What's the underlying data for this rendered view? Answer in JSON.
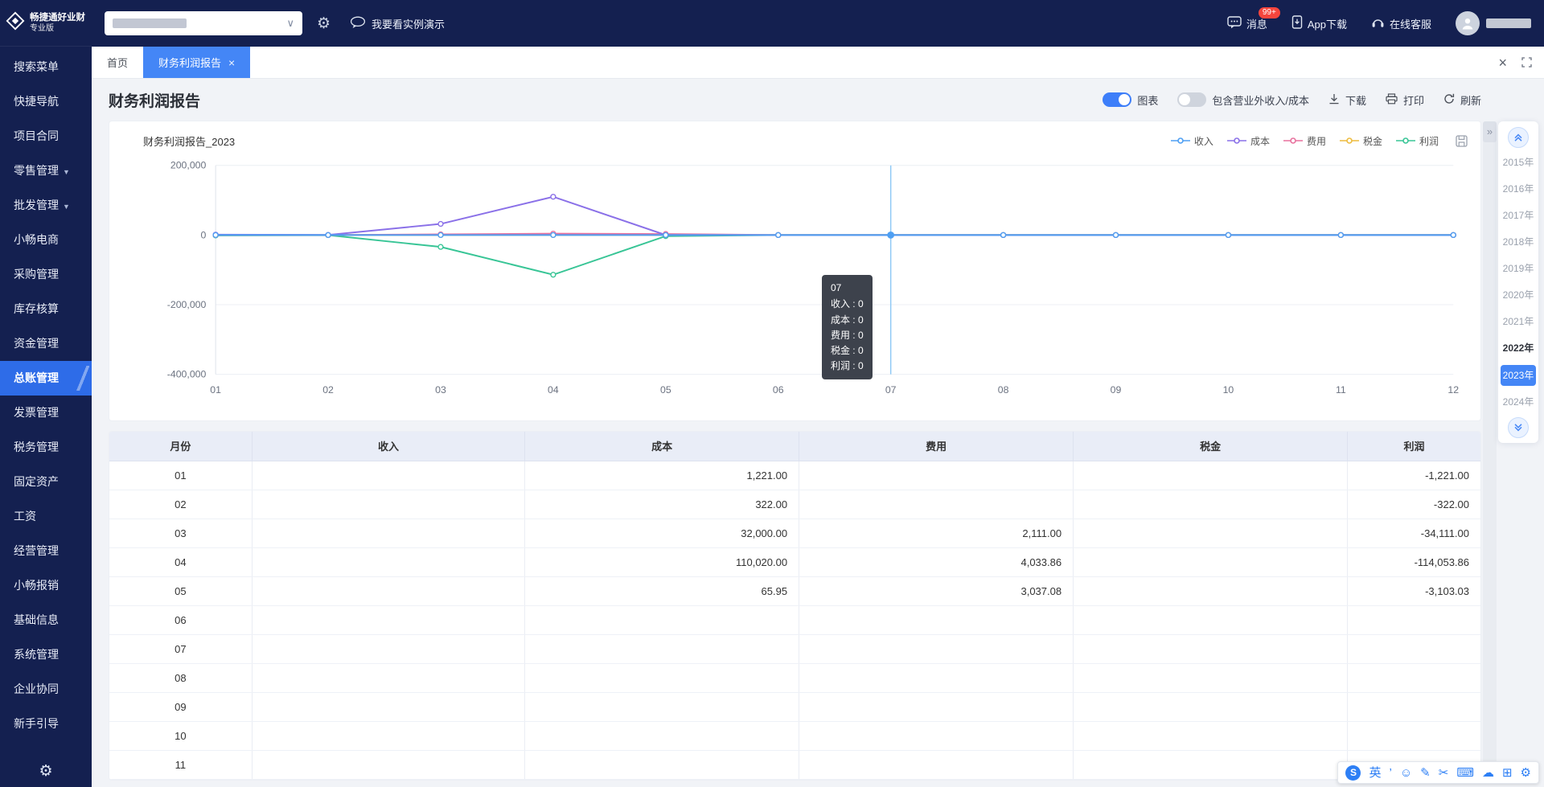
{
  "app": {
    "logo_title": "畅捷通好业财",
    "logo_subtitle": "专业版"
  },
  "icons": {
    "gear": "⚙",
    "select_chevron": "∨",
    "sidebar_caret": "▼",
    "tab_close": "×",
    "window_close": "×",
    "collapse": "»"
  },
  "topbar": {
    "demo_label": "我要看实例演示",
    "messages_label": "消息",
    "messages_badge": "99+",
    "app_download_label": "App下载",
    "support_label": "在线客服"
  },
  "sidebar": {
    "items": [
      {
        "label": "搜索菜单"
      },
      {
        "label": "快捷导航"
      },
      {
        "label": "项目合同"
      },
      {
        "label": "零售管理",
        "caret": true
      },
      {
        "label": "批发管理",
        "caret": true
      },
      {
        "label": "小畅电商"
      },
      {
        "label": "采购管理"
      },
      {
        "label": "库存核算"
      },
      {
        "label": "资金管理"
      },
      {
        "label": "总账管理",
        "active": true
      },
      {
        "label": "发票管理"
      },
      {
        "label": "税务管理"
      },
      {
        "label": "固定资产"
      },
      {
        "label": "工资"
      },
      {
        "label": "经营管理"
      },
      {
        "label": "小畅报销"
      },
      {
        "label": "基础信息"
      },
      {
        "label": "系统管理"
      },
      {
        "label": "企业协同"
      },
      {
        "label": "新手引导"
      }
    ]
  },
  "tabs": [
    {
      "label": "首页",
      "active": false
    },
    {
      "label": "财务利润报告",
      "active": true,
      "closable": true
    }
  ],
  "page": {
    "title": "财务利润报告",
    "toggle_chart_label": "图表",
    "toggle_chart_on": true,
    "toggle_include_label": "包含营业外收入/成本",
    "toggle_include_on": false,
    "download_label": "下载",
    "print_label": "打印",
    "refresh_label": "刷新"
  },
  "chart_data": {
    "type": "line",
    "title": "财务利润报告_2023",
    "categories": [
      "01",
      "02",
      "03",
      "04",
      "05",
      "06",
      "07",
      "08",
      "09",
      "10",
      "11",
      "12"
    ],
    "series": [
      {
        "name": "收入",
        "color": "#4e9ff3",
        "values": [
          0,
          0,
          0,
          0,
          0,
          0,
          0,
          0,
          0,
          0,
          0,
          0
        ]
      },
      {
        "name": "成本",
        "color": "#8a70e8",
        "values": [
          1221.0,
          322.0,
          32000.0,
          110020.0,
          65.95,
          0,
          0,
          0,
          0,
          0,
          0,
          0
        ]
      },
      {
        "name": "费用",
        "color": "#e8719e",
        "values": [
          0,
          0,
          2111.0,
          4033.86,
          3037.08,
          0,
          0,
          0,
          0,
          0,
          0,
          0
        ]
      },
      {
        "name": "税金",
        "color": "#edbc3f",
        "values": [
          0,
          0,
          0,
          0,
          0,
          0,
          0,
          0,
          0,
          0,
          0,
          0
        ]
      },
      {
        "name": "利润",
        "color": "#38c596",
        "values": [
          -1221.0,
          -322.0,
          -34111.0,
          -114053.86,
          -3103.03,
          0,
          0,
          0,
          0,
          0,
          0,
          0
        ]
      }
    ],
    "ylim": [
      -400000,
      200000
    ],
    "yticks": [
      200000,
      0,
      -200000,
      -400000
    ],
    "ytick_labels": [
      "200,000",
      "0",
      "-200,000",
      "-400,000"
    ],
    "grid": true,
    "legend_position": "top-right",
    "highlight_index": 6
  },
  "chart_tooltip": {
    "title": "07",
    "rows": [
      "收入 : 0",
      "成本 : 0",
      "费用 : 0",
      "税金 : 0",
      "利润 : 0"
    ]
  },
  "table": {
    "headers": [
      "月份",
      "收入",
      "成本",
      "费用",
      "税金",
      "利润"
    ],
    "rows": [
      [
        "01",
        "",
        "1,221.00",
        "",
        "",
        "-1,221.00"
      ],
      [
        "02",
        "",
        "322.00",
        "",
        "",
        "-322.00"
      ],
      [
        "03",
        "",
        "32,000.00",
        "2,111.00",
        "",
        "-34,111.00"
      ],
      [
        "04",
        "",
        "110,020.00",
        "4,033.86",
        "",
        "-114,053.86"
      ],
      [
        "05",
        "",
        "65.95",
        "3,037.08",
        "",
        "-3,103.03"
      ],
      [
        "06",
        "",
        "",
        "",
        "",
        ""
      ],
      [
        "07",
        "",
        "",
        "",
        "",
        ""
      ],
      [
        "08",
        "",
        "",
        "",
        "",
        ""
      ],
      [
        "09",
        "",
        "",
        "",
        "",
        ""
      ],
      [
        "10",
        "",
        "",
        "",
        "",
        ""
      ],
      [
        "11",
        "",
        "",
        "",
        "",
        ""
      ]
    ]
  },
  "year_panel": {
    "years": [
      "2015年",
      "2016年",
      "2017年",
      "2018年",
      "2019年",
      "2020年",
      "2021年",
      "2022年",
      "2023年",
      "2024年"
    ],
    "selected": "2023年",
    "bold_year": "2022年"
  },
  "ime_toolbar": {
    "items": [
      {
        "name": "ime-logo-icon",
        "glyph": "S",
        "logo": true
      },
      {
        "name": "ime-english-mode",
        "glyph": "英"
      },
      {
        "name": "ime-punctuation-icon",
        "glyph": "’"
      },
      {
        "name": "emoji-icon",
        "glyph": "☺"
      },
      {
        "name": "handwriting-icon",
        "glyph": "✎"
      },
      {
        "name": "screenshot-icon",
        "glyph": "✂"
      },
      {
        "name": "keyboard-icon",
        "glyph": "⌨"
      },
      {
        "name": "skin-icon",
        "glyph": "☁"
      },
      {
        "name": "toolbox-icon",
        "glyph": "⊞"
      },
      {
        "name": "ime-settings-icon",
        "glyph": "⚙"
      }
    ]
  }
}
